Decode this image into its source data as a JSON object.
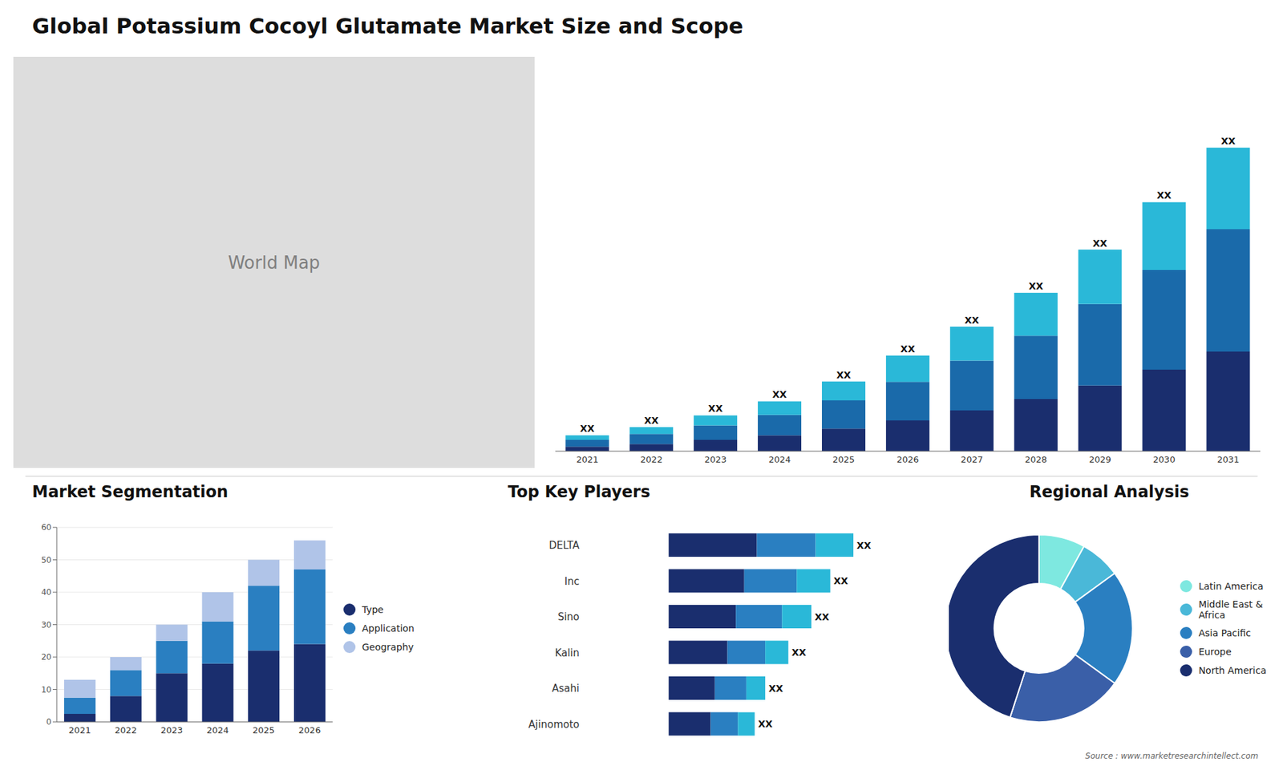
{
  "chart_data": [
    {
      "type": "bar",
      "title": "Global Potassium Cocoyl Glutamate Market Size and Scope",
      "annotations": [
        "World Map",
        "Source : www.marketresearchintellect.com"
      ],
      "stacked": true,
      "categories": [
        "2021",
        "2022",
        "2023",
        "2024",
        "2025",
        "2026",
        "2027",
        "2028",
        "2029",
        "2030",
        "2031"
      ],
      "series": [
        {
          "color": "#1a2e6e",
          "values": [
            1.0,
            1.6,
            2.5,
            3.5,
            5.0,
            6.8,
            9.0,
            11.5,
            14.5,
            18.0,
            22.0
          ]
        },
        {
          "color": "#1a6aaa",
          "values": [
            1.5,
            2.2,
            3.2,
            4.5,
            6.2,
            8.5,
            11.0,
            14.0,
            18.0,
            22.0,
            27.0
          ]
        },
        {
          "color": "#2ab8d8",
          "values": [
            1.0,
            1.5,
            2.2,
            3.0,
            4.2,
            5.8,
            7.5,
            9.5,
            12.0,
            15.0,
            18.0
          ],
          "value_labels": [
            "XX",
            "XX",
            "XX",
            "XX",
            "XX",
            "XX",
            "XX",
            "XX",
            "XX",
            "XX",
            "XX"
          ]
        }
      ],
      "ylim": [
        0,
        85.76
      ],
      "tick_labels": "x"
    },
    {
      "type": "bar",
      "title": "Market Segmentation",
      "stacked": true,
      "categories": [
        "2021",
        "2022",
        "2023",
        "2024",
        "2025",
        "2026"
      ],
      "series": [
        {
          "name": "Type",
          "color": "#1a2e6e",
          "values": [
            2.5,
            8.0,
            15.0,
            18.0,
            22.0,
            24.0
          ]
        },
        {
          "name": "Application",
          "color": "#2a7fc1",
          "values": [
            5.0,
            8.0,
            10.0,
            13.0,
            20.0,
            23.0
          ]
        },
        {
          "name": "Geography",
          "color": "#b0c4e8",
          "values": [
            5.5,
            4.0,
            5.0,
            9.0,
            8.0,
            9.0
          ]
        }
      ],
      "ylim": [
        0,
        60
      ],
      "yticks": [
        0,
        10,
        20,
        30,
        40,
        50,
        60
      ],
      "grid": true,
      "legend": "right"
    },
    {
      "type": "bar",
      "title": "Top Key Players",
      "orientation": "horizontal",
      "stacked": true,
      "categories": [
        "DELTA",
        "Inc",
        "Sino",
        "Kalin",
        "Asahi",
        "Ajinomoto"
      ],
      "series": [
        {
          "color": "#1a2e6e",
          "values": [
            0.42,
            0.36,
            0.32,
            0.28,
            0.22,
            0.2
          ]
        },
        {
          "color": "#2a7fc1",
          "values": [
            0.28,
            0.25,
            0.22,
            0.18,
            0.15,
            0.13
          ]
        },
        {
          "color": "#2ab8d8",
          "values": [
            0.18,
            0.16,
            0.14,
            0.11,
            0.09,
            0.08
          ],
          "value_labels": [
            "XX",
            "XX",
            "XX",
            "XX",
            "XX",
            "XX"
          ]
        }
      ],
      "xlim": [
        -0.4,
        1.144
      ],
      "tick_labels": "y"
    },
    {
      "type": "donut",
      "title": "Regional Analysis",
      "categories": [
        "Latin America",
        "Middle East &\nAfrica",
        "Asia Pacific",
        "Europe",
        "North America"
      ],
      "values": [
        8,
        7,
        20,
        20,
        45
      ],
      "colors": [
        "#7ee8e0",
        "#4ab8d8",
        "#2a7fc1",
        "#3a5fa8",
        "#1a2e6e"
      ],
      "legend": "right"
    }
  ]
}
